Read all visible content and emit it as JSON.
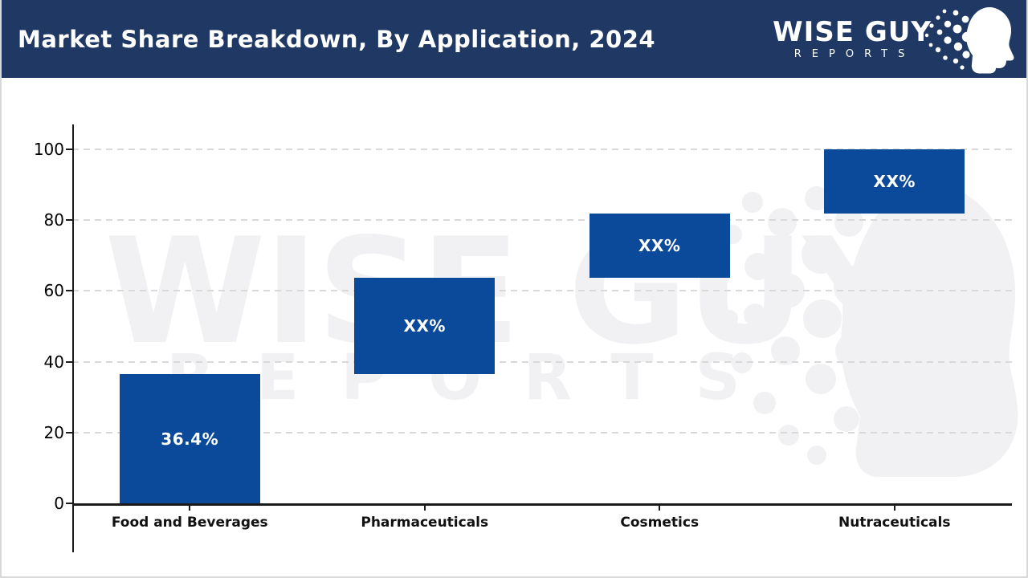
{
  "header": {
    "title": "Market Share Breakdown, By Application, 2024",
    "logo": {
      "line1": "WISE GUY",
      "line2": "REPORTS"
    }
  },
  "watermark": {
    "line1": "WISE GUY",
    "line2": "REPORTS"
  },
  "colors": {
    "header_bg": "#1F3864",
    "bar": "#0B4A9B",
    "grid": "#D9D9D9",
    "axis": "#1A1A1A",
    "watermark": "#F1F1F4",
    "bar_label": "#FFFFFF"
  },
  "chart_data": {
    "type": "bar",
    "subtype": "waterfall",
    "title": "Market Share Breakdown, By Application, 2024",
    "categories": [
      "Food and Beverages",
      "Pharmaceuticals",
      "Cosmetics",
      "Nutraceuticals"
    ],
    "segments": [
      {
        "category": "Food and Beverages",
        "start": 0,
        "end": 36.4,
        "value": 36.4,
        "label": "36.4%"
      },
      {
        "category": "Pharmaceuticals",
        "start": 36.4,
        "end": 63.6,
        "value": 27.2,
        "label": "XX%"
      },
      {
        "category": "Cosmetics",
        "start": 63.6,
        "end": 81.8,
        "value": 18.2,
        "label": "XX%"
      },
      {
        "category": "Nutraceuticals",
        "start": 81.8,
        "end": 100,
        "value": 18.2,
        "label": "XX%"
      }
    ],
    "y_ticks": [
      0,
      20,
      40,
      60,
      80,
      100
    ],
    "ylim": [
      0,
      107
    ],
    "xlabel": "",
    "ylabel": "",
    "grid": "horizontal-dashed",
    "legend": "none"
  }
}
